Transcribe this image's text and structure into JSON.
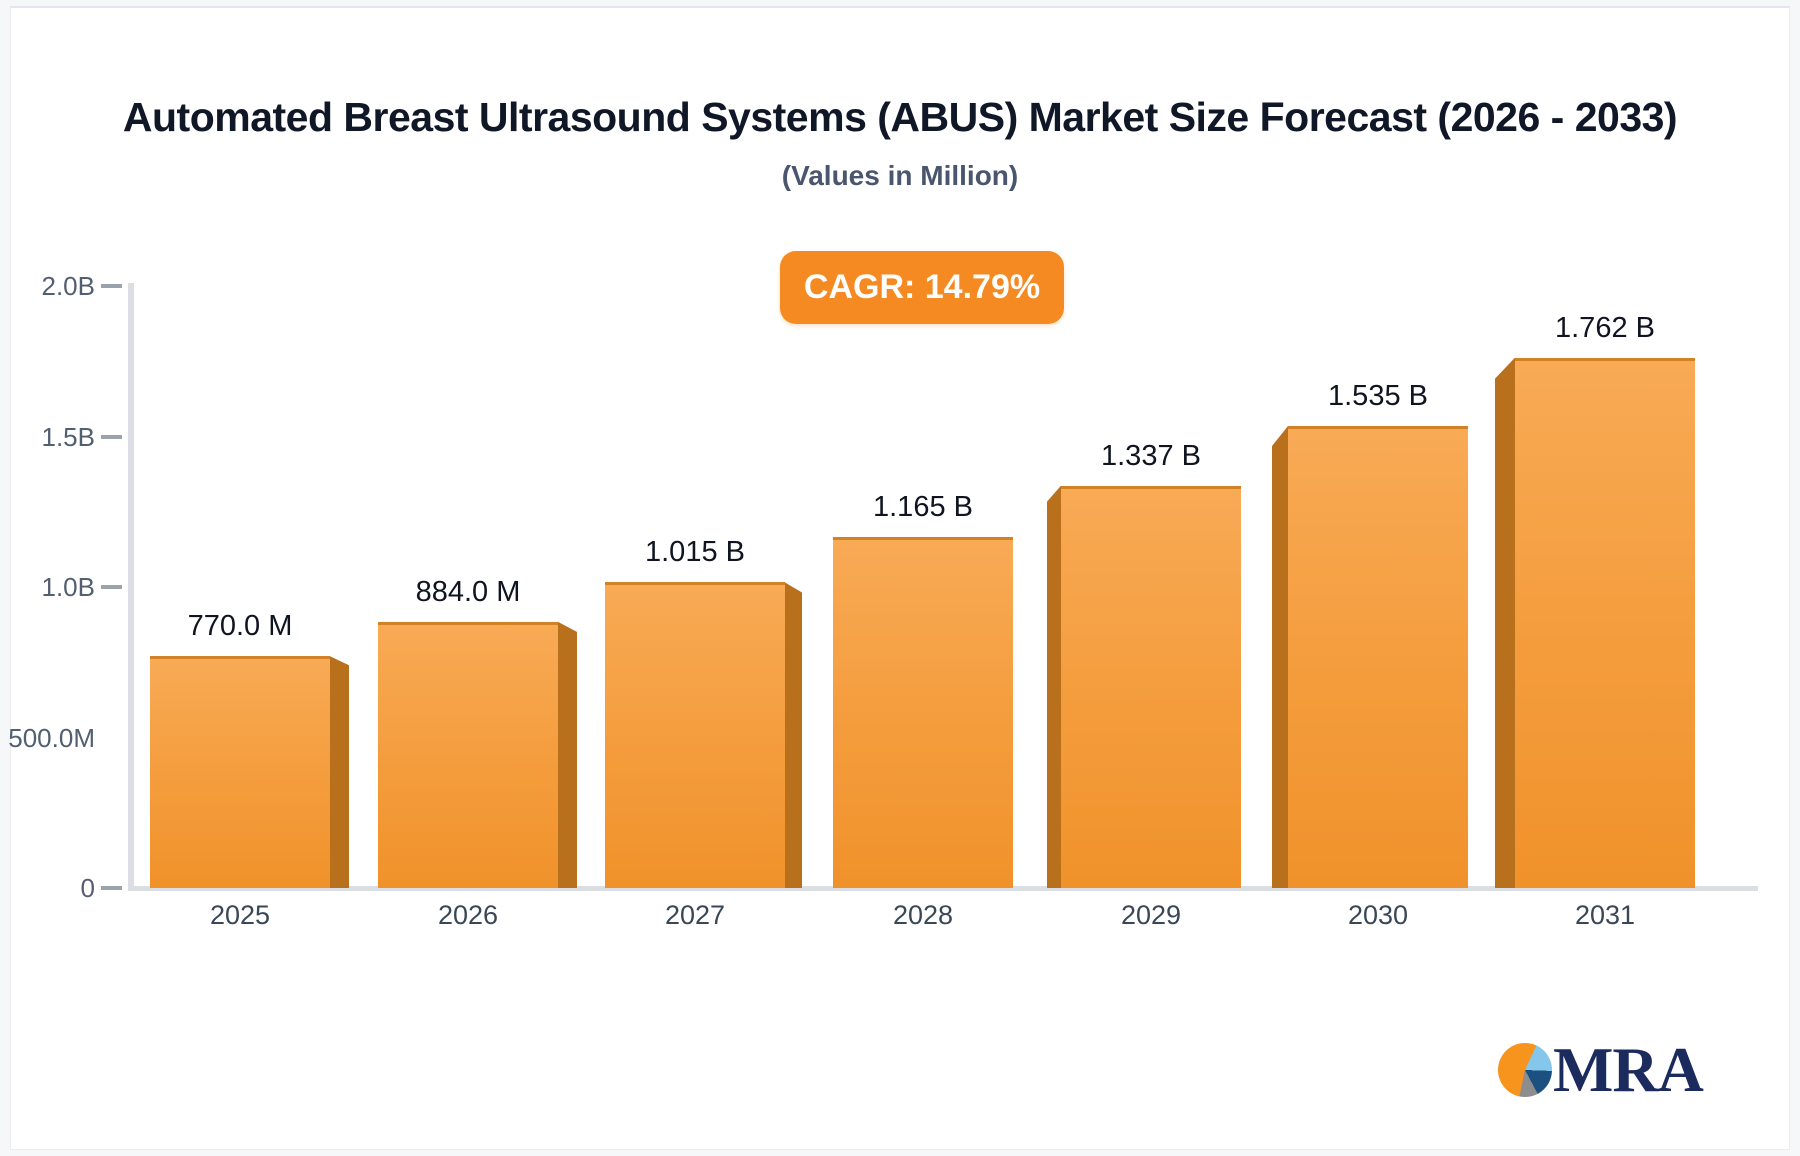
{
  "header": {
    "title": "Automated Breast Ultrasound Systems (ABUS) Market Size Forecast (2026 - 2033)",
    "subtitle": "(Values in Million)"
  },
  "badge": {
    "label": "CAGR: 14.79%",
    "bg_color": "#f68a22",
    "text_color": "#ffffff"
  },
  "chart_data": {
    "type": "bar",
    "title": "Automated Breast Ultrasound Systems (ABUS) Market Size Forecast (2026 - 2033)",
    "subtitle": "(Values in Million)",
    "xlabel": "",
    "ylabel": "",
    "ylim_millions": [
      0,
      2000
    ],
    "grid": false,
    "legend": false,
    "categories": [
      "2025",
      "2026",
      "2027",
      "2028",
      "2029",
      "2030",
      "2031"
    ],
    "values_millions": [
      770,
      884,
      1015,
      1165,
      1337,
      1535,
      1762
    ],
    "bar_labels": [
      "770.0 M",
      "884.0 M",
      "1.015 B",
      "1.165 B",
      "1.337 B",
      "1.535 B",
      "1.762 B"
    ],
    "y_ticks": [
      {
        "label": "2.0B",
        "value_millions": 2000,
        "tick_mark": true
      },
      {
        "label": "1.5B",
        "value_millions": 1500,
        "tick_mark": true
      },
      {
        "label": "1.0B",
        "value_millions": 1000,
        "tick_mark": true
      },
      {
        "label": "500.0M",
        "value_millions": 500,
        "tick_mark": false
      },
      {
        "label": "0",
        "value_millions": 0,
        "tick_mark": true
      }
    ],
    "colors": {
      "bar_face_top": "#f8aa55",
      "bar_face_bottom": "#f0922b",
      "bar_face_top_edge": "#d28127",
      "bar_side": "#b9701c",
      "axis": "#dbdee3",
      "tick_text": "#525f70",
      "category_text": "#3a4756",
      "value_text": "#0f1420"
    }
  },
  "logo": {
    "text": "MRA",
    "text_color": "#1b2b5e",
    "pie_colors": {
      "orange": "#f7941e",
      "light_blue": "#85c7ea",
      "navy": "#1b5081",
      "gray": "#8d8d90"
    }
  }
}
